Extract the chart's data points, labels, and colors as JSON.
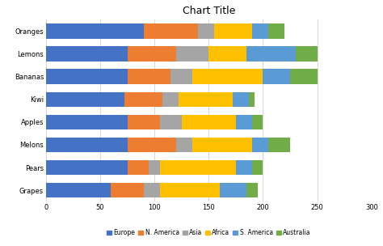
{
  "categories": [
    "Oranges",
    "Lemons",
    "Bananas",
    "Kiwi",
    "Apples",
    "Melons",
    "Pears",
    "Grapes"
  ],
  "series": [
    {
      "name": "Europe",
      "color": "#4472C4",
      "values": [
        90,
        75,
        75,
        72,
        75,
        75,
        75,
        60
      ]
    },
    {
      "name": "N. America",
      "color": "#ED7D31",
      "values": [
        50,
        45,
        40,
        35,
        30,
        45,
        20,
        30
      ]
    },
    {
      "name": "Asia",
      "color": "#A5A5A5",
      "values": [
        15,
        30,
        20,
        15,
        20,
        15,
        10,
        15
      ]
    },
    {
      "name": "Africa",
      "color": "#FFC000",
      "values": [
        35,
        35,
        65,
        50,
        50,
        55,
        70,
        55
      ]
    },
    {
      "name": "S. America",
      "color": "#5B9BD5",
      "values": [
        15,
        45,
        25,
        15,
        15,
        15,
        15,
        25
      ]
    },
    {
      "name": "Australia",
      "color": "#70AD47",
      "values": [
        15,
        20,
        25,
        5,
        10,
        20,
        10,
        10
      ]
    }
  ],
  "title": "Chart Title",
  "xlim": [
    0,
    300
  ],
  "xticks": [
    0,
    50,
    100,
    150,
    200,
    250,
    300
  ],
  "background_color": "#ffffff",
  "plot_bg_color": "#ffffff",
  "grid_color": "#d9d9d9",
  "title_fontsize": 9,
  "legend_fontsize": 5.5,
  "tick_fontsize": 6,
  "label_fontsize": 6,
  "bar_height": 0.65
}
